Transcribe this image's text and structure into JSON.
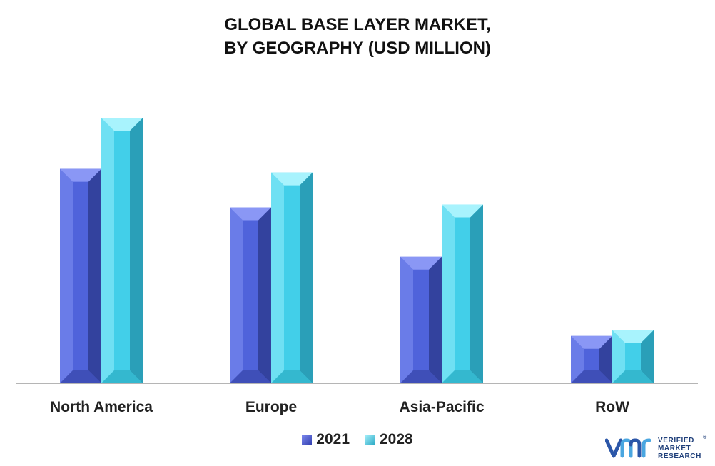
{
  "title": {
    "line1": "GLOBAL BASE LAYER MARKET,",
    "line2": "BY GEOGRAPHY (USD MILLION)"
  },
  "chart_data": {
    "type": "bar",
    "categories": [
      "North America",
      "Europe",
      "Asia-Pacific",
      "RoW"
    ],
    "series": [
      {
        "name": "2021",
        "values": [
          295,
          242,
          174,
          65
        ]
      },
      {
        "name": "2028",
        "values": [
          365,
          290,
          246,
          73
        ]
      }
    ],
    "ylim": [
      0,
      380
    ],
    "grid": false,
    "legend_position": "bottom",
    "colors": {
      "2021": "#4a5fd6",
      "2028": "#3dcbe6"
    }
  },
  "legend": {
    "items": [
      {
        "label": "2021",
        "color": "#4a5fd6"
      },
      {
        "label": "2028",
        "color": "#3dcbe6"
      }
    ]
  },
  "brand": {
    "line1": "VERIFIED",
    "line2": "MARKET",
    "line3": "RESEARCH",
    "mark": "®",
    "color": "#1f3f7a",
    "accent": "#4aa6e0"
  }
}
